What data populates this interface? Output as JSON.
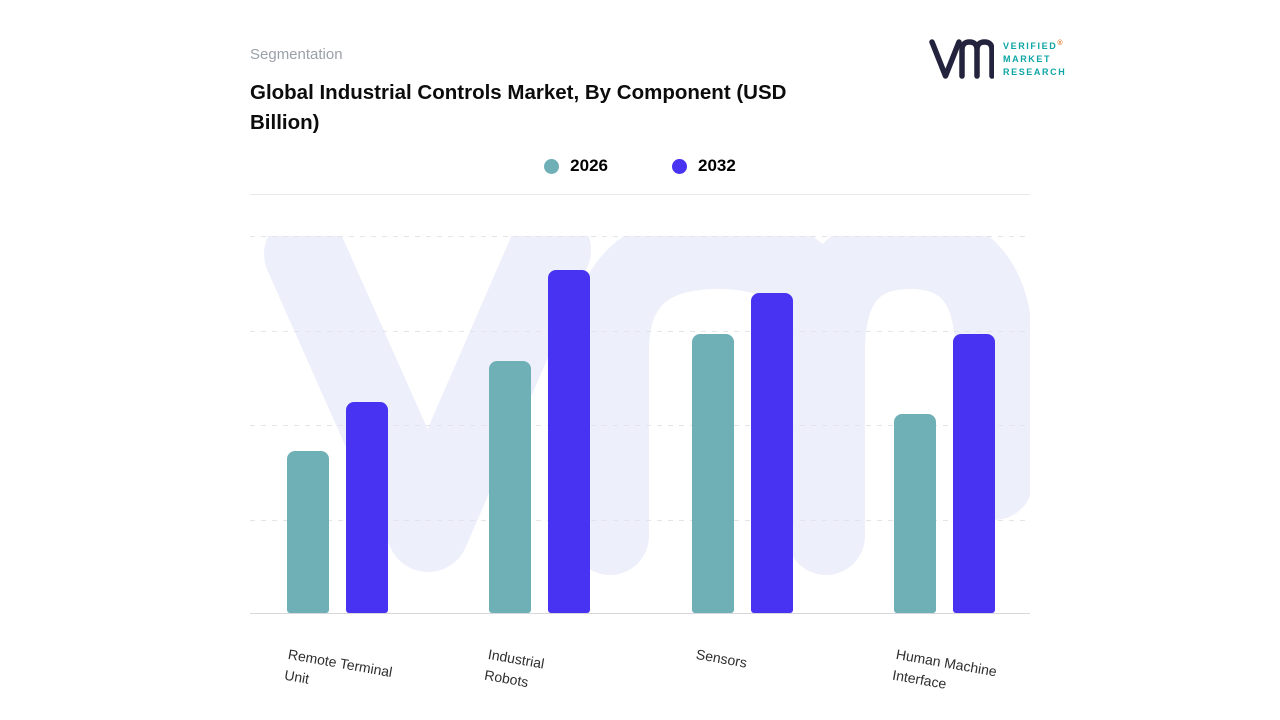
{
  "header": {
    "eyebrow": "Segmentation",
    "title": "Global Industrial Controls Market, By Component (USD Billion)"
  },
  "logo": {
    "lines": [
      "VERIFIED",
      "MARKET",
      "RESEARCH"
    ],
    "registered": "®",
    "text_color": "#0da5a5",
    "monogram_color": "#23233d"
  },
  "chart_data": {
    "type": "bar",
    "title": "Global Industrial Controls Market, By Component (USD Billion)",
    "units": "USD Billion",
    "categories": [
      "Remote Terminal Unit",
      "Industrial Robots",
      "Sensors",
      "Human Machine Interface"
    ],
    "category_lines": [
      [
        "Remote Terminal",
        "Unit"
      ],
      [
        "Industrial",
        "Robots"
      ],
      [
        "Sensors"
      ],
      [
        "Human Machine",
        "Interface"
      ]
    ],
    "series": [
      {
        "name": "2026",
        "color": "#6fb0b6",
        "values": [
          43,
          67,
          74,
          53
        ]
      },
      {
        "name": "2032",
        "color": "#4733f1",
        "values": [
          56,
          91,
          85,
          74
        ]
      }
    ],
    "ylim": [
      0,
      100
    ],
    "y_axis_labels_visible": false,
    "grid": "dashed-horizontal",
    "legend_position": "top-center",
    "watermark": "vm-monogram"
  }
}
